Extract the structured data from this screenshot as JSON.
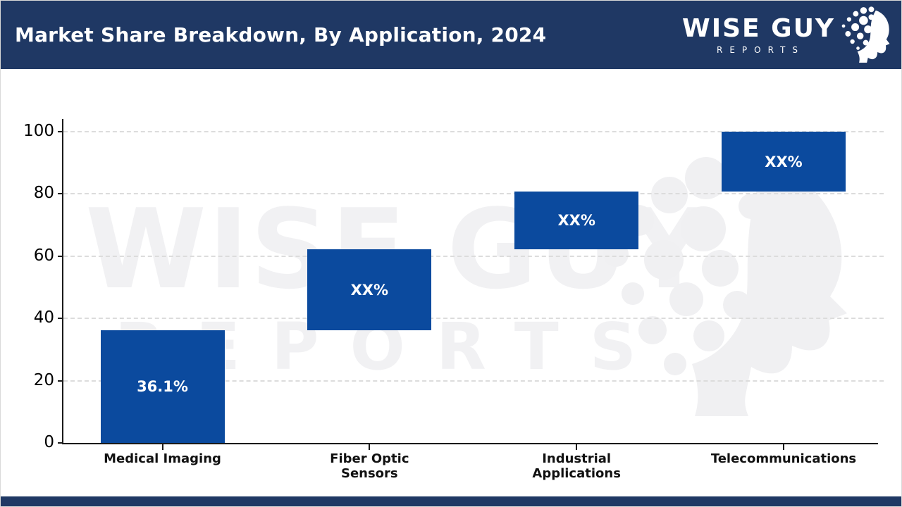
{
  "header": {
    "title": "Market Share Breakdown, By Application, 2024",
    "bg_color": "#1f3864",
    "brand": {
      "line1": "WISE GUY",
      "line2": "REPORTS"
    }
  },
  "watermark": {
    "line1": "WISE GUY",
    "line2": "REPORTS"
  },
  "footer": {
    "bg_color": "#1f3864"
  },
  "chart_data": {
    "type": "bar",
    "subtype": "waterfall-stacked-percentage",
    "title": "Market Share Breakdown, By Application, 2024",
    "categories": [
      "Medical Imaging",
      "Fiber Optic\nSensors",
      "Industrial\nApplications",
      "Telecommunications"
    ],
    "segments": [
      {
        "category": "Medical Imaging",
        "start": 0,
        "end": 36.1,
        "value_label": "36.1%"
      },
      {
        "category": "Fiber Optic Sensors",
        "start": 36.1,
        "end": 62.3,
        "value_label": "XX%"
      },
      {
        "category": "Industrial Applications",
        "start": 62.3,
        "end": 80.7,
        "value_label": "XX%"
      },
      {
        "category": "Telecommunications",
        "start": 80.7,
        "end": 100,
        "value_label": "XX%"
      }
    ],
    "yticks": [
      0,
      20,
      40,
      60,
      80,
      100
    ],
    "ylim": [
      0,
      104
    ],
    "xlabel": "",
    "ylabel": "",
    "bar_color": "#0b4a9e",
    "grid": "horizontal-dashed",
    "gridline_color": "#dcdcdc",
    "axis_color": "#1a1a1a",
    "legend": "none"
  }
}
